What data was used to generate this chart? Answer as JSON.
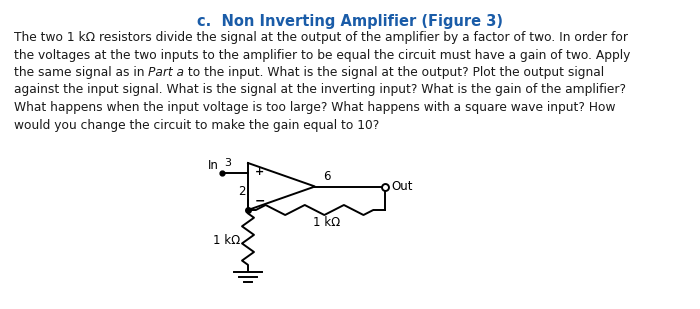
{
  "title": "c.  Non Inverting Amplifier (Figure 3)",
  "title_color": "#1a5ca8",
  "body_lines": [
    "The two 1 kΩ resistors divide the signal at the output of the amplifier by a factor of two. In order for",
    "the voltages at the two inputs to the amplifier to be equal the circuit must have a gain of two. Apply",
    "the same signal as in |Part a| to the input. What is the signal at the output? Plot the output signal",
    "against the input signal. What is the signal at the inverting input? What is the gain of the amplifier?",
    "What happens when the input voltage is too large? What happens with a square wave input? How",
    "would you change the circuit to make the gain equal to 10?"
  ],
  "text_color": "#1a1a1a",
  "bg_color": "#ffffff",
  "font_size_title": 10.5,
  "font_size_body": 8.8,
  "circuit_label_in": "In",
  "circuit_label_out": "Out",
  "circuit_label_plus": "+",
  "circuit_label_minus": "−",
  "circuit_label_3": "3",
  "circuit_label_2": "2",
  "circuit_label_6": "6",
  "circuit_label_r1": "1 kΩ",
  "circuit_label_r2": "1 kΩ"
}
